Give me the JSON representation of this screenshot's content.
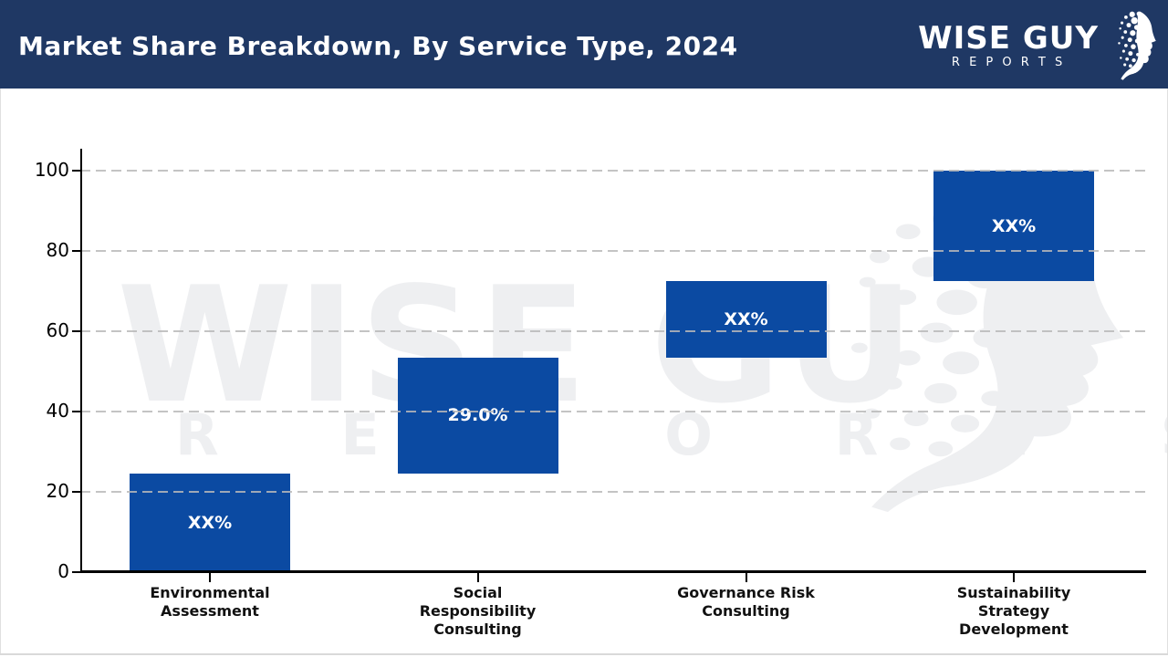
{
  "header": {
    "title": "Market Share Breakdown, By Service Type, 2024",
    "logo": {
      "brand": "WISE GUY",
      "reports": "R E P O R T S"
    }
  },
  "watermark": {
    "brand": "WISE GU",
    "reports": "R E P O R T S"
  },
  "chart_data": {
    "type": "bar",
    "subtype": "waterfall-floating-bars",
    "title": "Market Share Breakdown, By Service Type, 2024",
    "categories": [
      "Environmental Assessment",
      "Social Responsibility Consulting",
      "Governance Risk Consulting",
      "Sustainability Strategy Development"
    ],
    "category_label_lines": [
      [
        "Environmental",
        "Assessment"
      ],
      [
        "Social",
        "Responsibility",
        "Consulting"
      ],
      [
        "Governance Risk",
        "Consulting"
      ],
      [
        "Sustainability",
        "Strategy",
        "Development"
      ]
    ],
    "segments": [
      {
        "category": "Environmental Assessment",
        "start": 0,
        "end": 24.5,
        "label": "XX%"
      },
      {
        "category": "Social Responsibility Consulting",
        "start": 24.5,
        "end": 53.5,
        "label": "29.0%"
      },
      {
        "category": "Governance Risk Consulting",
        "start": 53.5,
        "end": 72.5,
        "label": "XX%"
      },
      {
        "category": "Sustainability Strategy Development",
        "start": 72.5,
        "end": 100,
        "label": "XX%"
      }
    ],
    "xlabel": "",
    "ylabel": "",
    "ylim": [
      0,
      100
    ],
    "yticks": [
      0,
      20,
      40,
      60,
      80,
      100
    ],
    "grid": "horizontal dashed, drawn over bars",
    "legend": "none",
    "bar_color": "#0b4aa2",
    "bar_label_color": "#ffffff",
    "header_bg_color": "#1f3864",
    "watermark_color": "#eeeff1"
  }
}
